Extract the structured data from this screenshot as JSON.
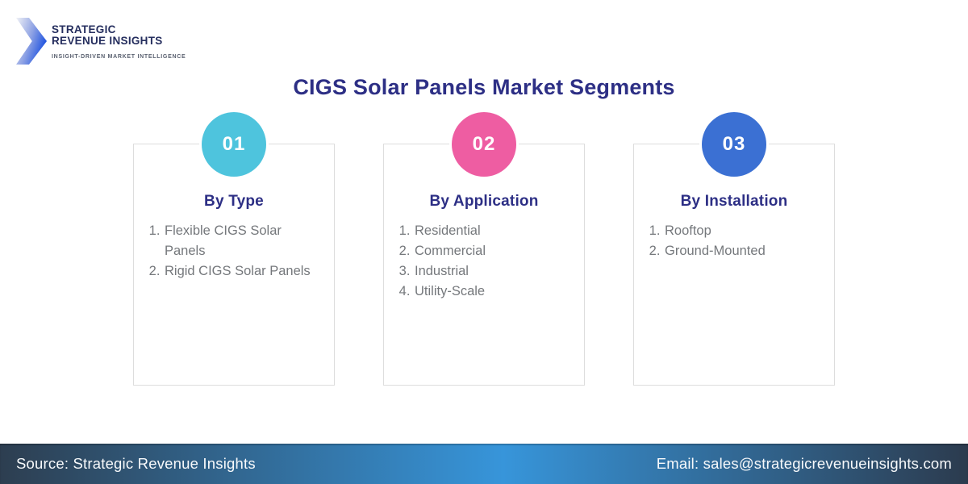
{
  "logo": {
    "line1": "STRATEGIC",
    "line2": "REVENUE INSIGHTS",
    "tagline": "INSIGHT-DRIVEN MARKET INTELLIGENCE"
  },
  "title": "CIGS Solar Panels Market Segments",
  "segments": [
    {
      "number": "01",
      "circle_color": "#4EC4DD",
      "heading": "By Type",
      "items": [
        "Flexible CIGS Solar Panels",
        "Rigid CIGS Solar Panels"
      ]
    },
    {
      "number": "02",
      "circle_color": "#EE5DA2",
      "heading": "By Application",
      "items": [
        "Residential",
        "Commercial",
        "Industrial",
        "Utility-Scale"
      ]
    },
    {
      "number": "03",
      "circle_color": "#3B70D3",
      "heading": "By Installation",
      "items": [
        "Rooftop",
        "Ground-Mounted"
      ]
    }
  ],
  "footer": {
    "source": "Source: Strategic Revenue Insights",
    "email": "Email: sales@strategicrevenueinsights.com"
  },
  "colors": {
    "title_navy": "#2D2F85",
    "heading_navy": "#2D2F85",
    "list_gray": "#75787C",
    "card_border": "#DDDDDD",
    "footer_gradient_left": "#2D3E50",
    "footer_gradient_mid": "#3795DA",
    "footer_gradient_right": "#2C3B4E",
    "logo_navy": "#252E5E",
    "logo_tagline_gray": "#5A6170",
    "logo_gradient_start": "#EDEFF5",
    "logo_gradient_end": "#2356E0"
  }
}
